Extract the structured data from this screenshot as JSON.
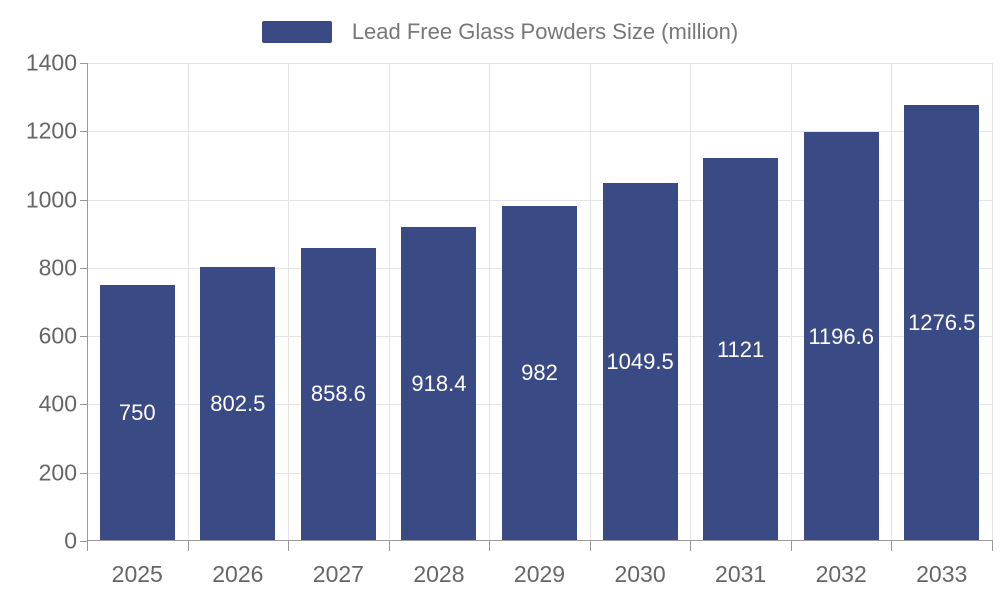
{
  "legend": {
    "label": "Lead Free Glass Powders Size (million)",
    "swatch_color": "#3A4A85"
  },
  "chart_data": {
    "type": "bar",
    "title": "",
    "xlabel": "",
    "ylabel": "",
    "categories": [
      "2025",
      "2026",
      "2027",
      "2028",
      "2029",
      "2030",
      "2031",
      "2032",
      "2033"
    ],
    "series": [
      {
        "name": "Lead Free Glass Powders Size (million)",
        "values": [
          750,
          802.5,
          858.6,
          918.4,
          982,
          1049.5,
          1121,
          1196.6,
          1276.5
        ]
      }
    ],
    "value_labels": [
      "750",
      "802.5",
      "858.6",
      "918.4",
      "982",
      "1049.5",
      "1121",
      "1196.6",
      "1276.5"
    ],
    "ylim": [
      0,
      1400
    ],
    "yticks": [
      0,
      200,
      400,
      600,
      800,
      1000,
      1200,
      1400
    ],
    "grid": true,
    "legend_position": "top-center",
    "colors": {
      "bar": "#3A4A85",
      "bar_label": "#FFFFFF",
      "gridline": "#E3E3E8",
      "axis": "#999999",
      "tick_label": "#666666",
      "legend_text": "#777777"
    }
  }
}
